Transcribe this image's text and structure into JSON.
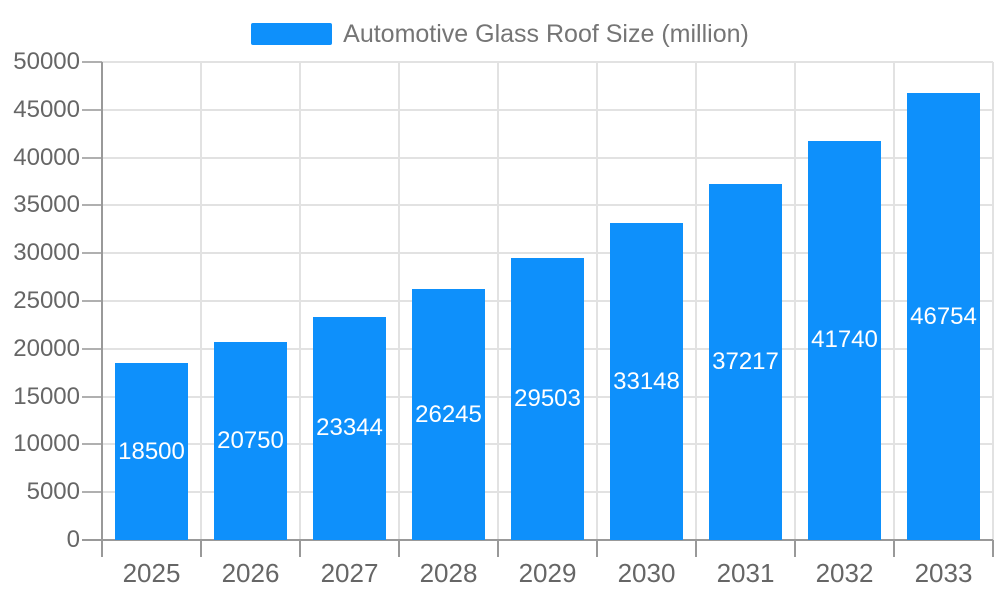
{
  "legend": {
    "label": "Automotive Glass Roof Size (million)"
  },
  "chart_data": {
    "type": "bar",
    "title": "Automotive Glass Roof Size (million)",
    "categories": [
      "2025",
      "2026",
      "2027",
      "2028",
      "2029",
      "2030",
      "2031",
      "2032",
      "2033"
    ],
    "values": [
      18500,
      20750,
      23344,
      26245,
      29503,
      33148,
      37217,
      41740,
      46754
    ],
    "series": [
      {
        "name": "Automotive Glass Roof Size (million)",
        "values": [
          18500,
          20750,
          23344,
          26245,
          29503,
          33148,
          37217,
          41740,
          46754
        ]
      }
    ],
    "xlabel": "",
    "ylabel": "",
    "ylim": [
      0,
      50000
    ],
    "ytick_interval": 5000,
    "ytick_labels": [
      "0",
      "5000",
      "10000",
      "15000",
      "20000",
      "25000",
      "30000",
      "35000",
      "40000",
      "45000",
      "50000"
    ],
    "grid": true,
    "legend_position": "top",
    "data_labels": "inside-center-white",
    "colors": {
      "bar": "#0e90fb",
      "axis_line": "#999999",
      "grid_line": "#e2e2e2",
      "y_tick": "#b0b0b0",
      "x_tick": "#999999",
      "axis_text": "#666666",
      "legend_text": "#757575",
      "data_label_text": "#ffffff"
    }
  }
}
